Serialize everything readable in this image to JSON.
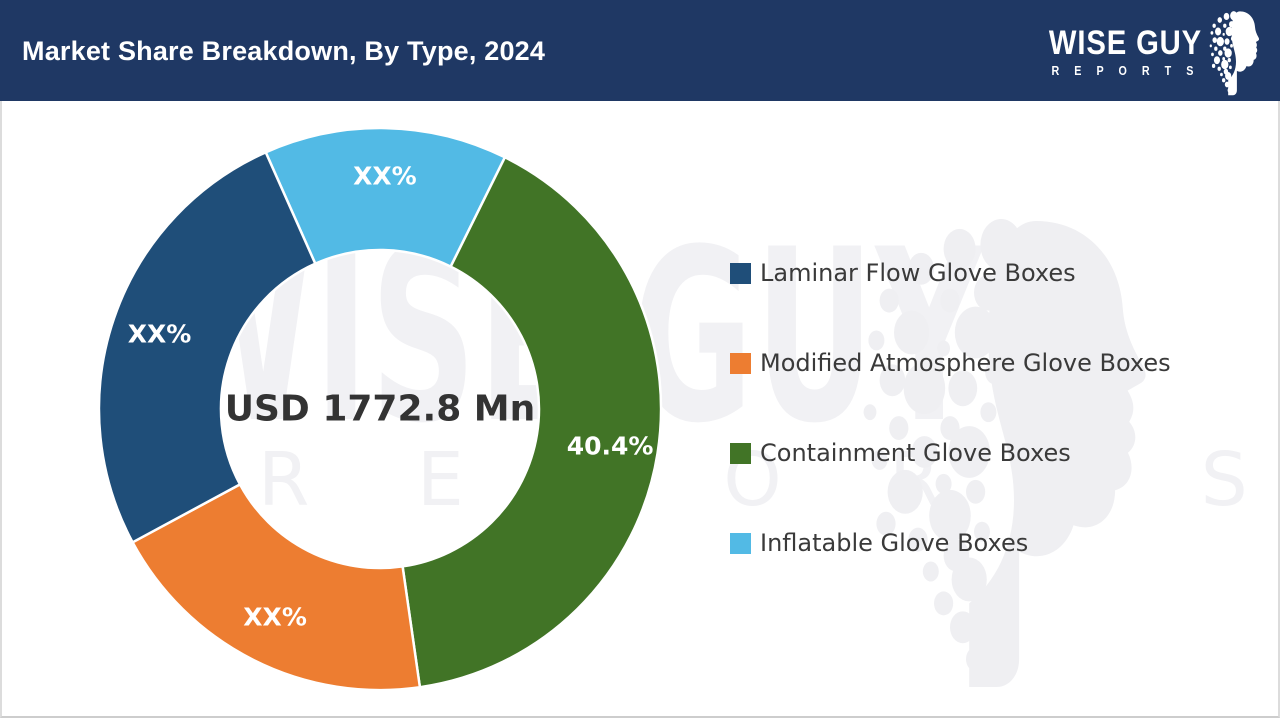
{
  "header": {
    "title": "Market Share Breakdown, By Type, 2024",
    "logo_primary": "WISE GUY",
    "logo_secondary": "R E P O R T S"
  },
  "watermark": {
    "line1": "WISE GUY",
    "line2": "R E P O R T S"
  },
  "chart_data": {
    "type": "pie",
    "variant": "donut",
    "title": "Market Share Breakdown, By Type, 2024",
    "center_label": "USD 1772.8 Mn",
    "start_angle_deg": -24,
    "rotation": "clockwise",
    "legend_position": "right",
    "segments": [
      {
        "name": "Inflatable Glove Boxes",
        "label": "XX%",
        "value_pct_est": 14.0,
        "color": "#52bae5"
      },
      {
        "name": "Containment Glove Boxes",
        "label": "40.4%",
        "value_pct_est": 40.4,
        "color": "#417426"
      },
      {
        "name": "Modified Atmosphere Glove Boxes",
        "label": "XX%",
        "value_pct_est": 19.4,
        "color": "#ed7d31"
      },
      {
        "name": "Laminar Flow Glove Boxes",
        "label": "XX%",
        "value_pct_est": 26.2,
        "color": "#1f4e79"
      }
    ],
    "legend": [
      {
        "label": "Laminar Flow Glove Boxes",
        "color": "#1f4e79"
      },
      {
        "label": "Modified Atmosphere Glove Boxes",
        "color": "#ed7d31"
      },
      {
        "label": "Containment Glove Boxes",
        "color": "#417426"
      },
      {
        "label": "Inflatable Glove Boxes",
        "color": "#52bae5"
      }
    ]
  },
  "colors": {
    "header_bg": "#1f3864",
    "center_text": "#333333",
    "legend_text": "#3a3a3a",
    "watermark": "#f1f1f4"
  }
}
